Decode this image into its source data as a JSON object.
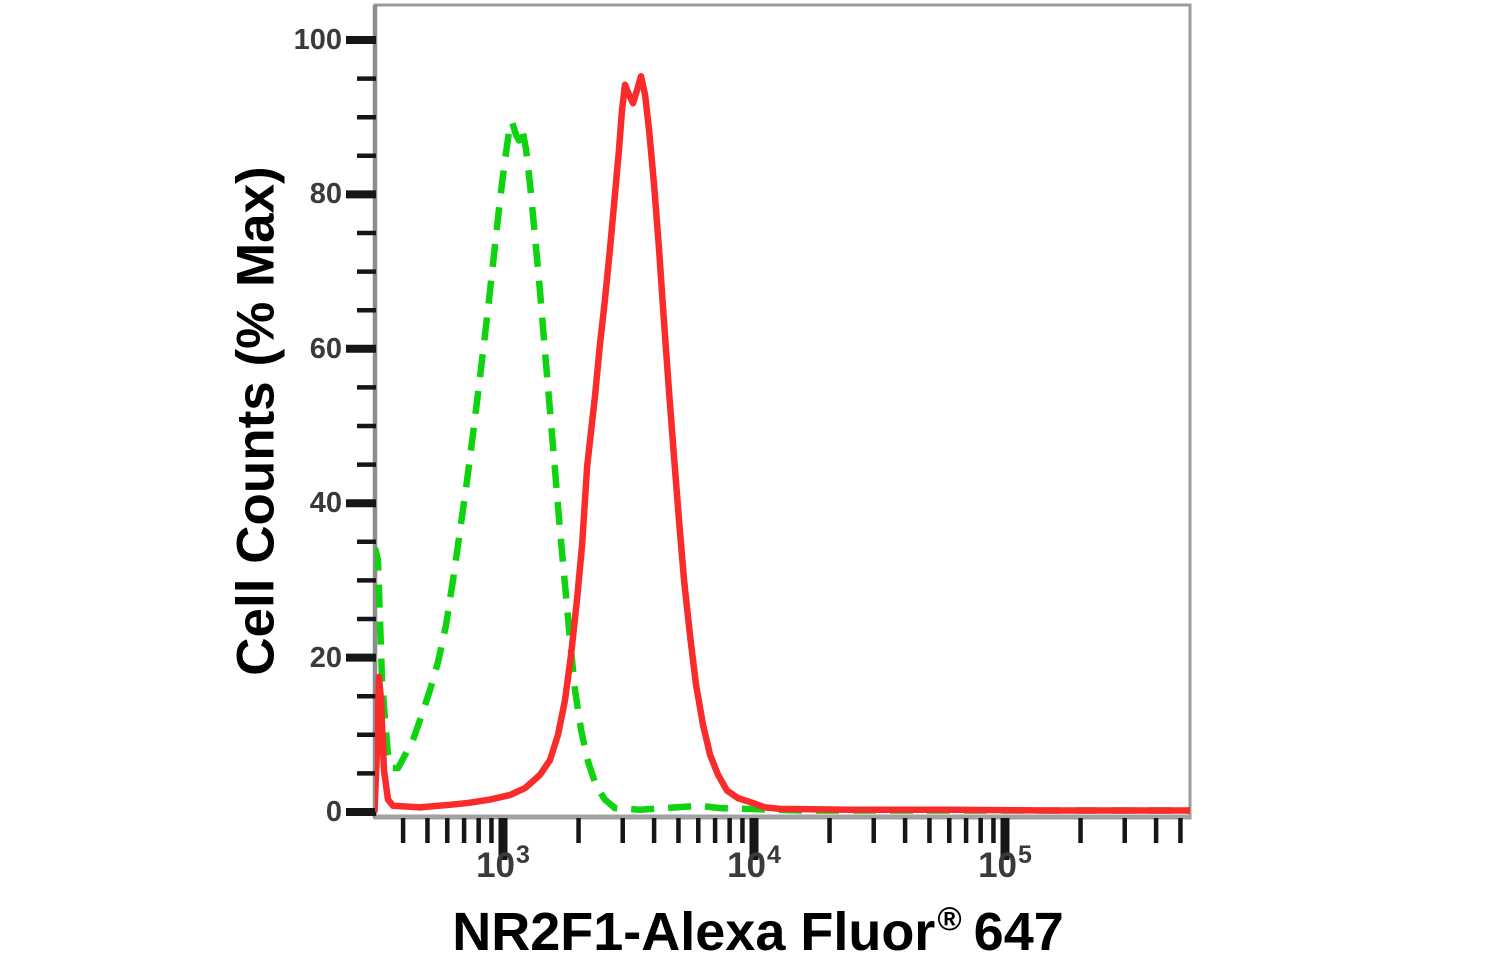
{
  "figure": {
    "background": "#ffffff",
    "plot_border_color": "#9c9c9c",
    "tick_color": "#161616",
    "tick_label_color": "#3a3a3a",
    "title_color": "#000000"
  },
  "y_axis_title": "Cell Counts (% Max)",
  "x_axis_title": {
    "text": "NR2F1-Alexa Fluor",
    "sup": "®",
    "suffix": "647"
  },
  "chart_data": {
    "type": "line",
    "subtype": "flow_cytometry_histogram_overlay",
    "title": "",
    "xlabel": "NR2F1-Alexa Fluor® 647",
    "ylabel": "Cell Counts (% Max)",
    "grid": false,
    "legend": "none",
    "x_axis": {
      "scale": "log10",
      "min_log": 2.49,
      "max_log": 5.737,
      "major_ticks": [
        {
          "log": 3,
          "base": "10",
          "exp": "3"
        },
        {
          "log": 4,
          "base": "10",
          "exp": "4"
        },
        {
          "log": 5,
          "base": "10",
          "exp": "5"
        }
      ],
      "minor_ticks_log": [
        2.602,
        2.699,
        2.778,
        2.845,
        2.903,
        2.954,
        3.301,
        3.477,
        3.602,
        3.699,
        3.778,
        3.845,
        3.903,
        3.954,
        4.301,
        4.477,
        4.602,
        4.699,
        4.778,
        4.845,
        4.903,
        4.954,
        5.301,
        5.477,
        5.602,
        5.699
      ]
    },
    "y_axis": {
      "min": 0,
      "max": 104.5,
      "major_ticks": [
        {
          "value": 0,
          "label": "0"
        },
        {
          "value": 20,
          "label": "20"
        },
        {
          "value": 40,
          "label": "40"
        },
        {
          "value": 60,
          "label": "60"
        },
        {
          "value": 80,
          "label": "80"
        },
        {
          "value": 100,
          "label": "100"
        }
      ],
      "minor_ticks": [
        5,
        10,
        15,
        25,
        30,
        35,
        45,
        50,
        55,
        65,
        70,
        75,
        85,
        90,
        95
      ]
    },
    "series": [
      {
        "id": "green-dashed-histogram",
        "appearance": "dashed",
        "color": "#0fd30f",
        "dash": [
          23,
          14
        ],
        "width": 6.5,
        "peak": {
          "x_log": 3.036,
          "percent": 89.4
        },
        "points": [
          [
            2.49,
            34.2
          ],
          [
            2.502,
            32.6
          ],
          [
            2.51,
            24.9
          ],
          [
            2.518,
            17.1
          ],
          [
            2.53,
            11.9
          ],
          [
            2.542,
            7.4
          ],
          [
            2.558,
            5.7
          ],
          [
            2.582,
            5.7
          ],
          [
            2.61,
            7.4
          ],
          [
            2.641,
            9.3
          ],
          [
            2.677,
            12.6
          ],
          [
            2.709,
            15.8
          ],
          [
            2.741,
            19.4
          ],
          [
            2.773,
            24.2
          ],
          [
            2.801,
            30.1
          ],
          [
            2.829,
            36.5
          ],
          [
            2.857,
            43.0
          ],
          [
            2.885,
            50.1
          ],
          [
            2.912,
            57.3
          ],
          [
            2.94,
            65.0
          ],
          [
            2.964,
            72.2
          ],
          [
            2.988,
            79.3
          ],
          [
            3.008,
            84.5
          ],
          [
            3.024,
            88.1
          ],
          [
            3.036,
            89.4
          ],
          [
            3.052,
            87.7
          ],
          [
            3.064,
            87.0
          ],
          [
            3.076,
            88.6
          ],
          [
            3.092,
            85.8
          ],
          [
            3.108,
            81.2
          ],
          [
            3.127,
            74.7
          ],
          [
            3.147,
            67.6
          ],
          [
            3.167,
            59.8
          ],
          [
            3.187,
            52.1
          ],
          [
            3.207,
            44.3
          ],
          [
            3.227,
            36.5
          ],
          [
            3.247,
            29.4
          ],
          [
            3.267,
            22.3
          ],
          [
            3.287,
            15.8
          ],
          [
            3.311,
            10.6
          ],
          [
            3.339,
            6.5
          ],
          [
            3.371,
            3.4
          ],
          [
            3.406,
            1.6
          ],
          [
            3.446,
            0.5
          ],
          [
            3.546,
            0.3
          ],
          [
            3.785,
            0.8
          ],
          [
            3.864,
            0.5
          ],
          [
            4.183,
            0.2
          ],
          [
            4.581,
            0.2
          ],
          [
            4.98,
            0.2
          ],
          [
            5.378,
            0.2
          ],
          [
            5.745,
            0.2
          ]
        ]
      },
      {
        "id": "red-solid-histogram",
        "appearance": "solid",
        "color": "#fa2b2b",
        "dash": null,
        "width": 6.5,
        "peak": {
          "x_log": 3.55,
          "percent": 95.3
        },
        "points": [
          [
            2.488,
            0.0
          ],
          [
            2.498,
            8.0
          ],
          [
            2.506,
            17.5
          ],
          [
            2.514,
            14.5
          ],
          [
            2.526,
            5.4
          ],
          [
            2.542,
            1.6
          ],
          [
            2.562,
            0.8
          ],
          [
            2.669,
            0.6
          ],
          [
            2.809,
            1.0
          ],
          [
            2.869,
            1.2
          ],
          [
            2.948,
            1.6
          ],
          [
            3.028,
            2.2
          ],
          [
            3.088,
            3.1
          ],
          [
            3.147,
            4.8
          ],
          [
            3.187,
            6.7
          ],
          [
            3.219,
            10.0
          ],
          [
            3.247,
            14.5
          ],
          [
            3.271,
            20.3
          ],
          [
            3.295,
            27.5
          ],
          [
            3.315,
            34.6
          ],
          [
            3.335,
            44.7
          ],
          [
            3.347,
            48.2
          ],
          [
            3.367,
            54.0
          ],
          [
            3.386,
            60.5
          ],
          [
            3.406,
            66.3
          ],
          [
            3.426,
            72.8
          ],
          [
            3.446,
            79.9
          ],
          [
            3.462,
            85.8
          ],
          [
            3.474,
            90.9
          ],
          [
            3.486,
            94.2
          ],
          [
            3.502,
            92.9
          ],
          [
            3.518,
            91.8
          ],
          [
            3.534,
            93.5
          ],
          [
            3.55,
            95.3
          ],
          [
            3.566,
            92.9
          ],
          [
            3.582,
            88.3
          ],
          [
            3.602,
            81.2
          ],
          [
            3.622,
            72.8
          ],
          [
            3.641,
            63.7
          ],
          [
            3.661,
            54.7
          ],
          [
            3.681,
            46.2
          ],
          [
            3.701,
            37.8
          ],
          [
            3.721,
            30.1
          ],
          [
            3.745,
            22.9
          ],
          [
            3.769,
            16.5
          ],
          [
            3.797,
            11.3
          ],
          [
            3.825,
            7.4
          ],
          [
            3.857,
            4.8
          ],
          [
            3.892,
            2.8
          ],
          [
            3.936,
            1.8
          ],
          [
            3.992,
            1.2
          ],
          [
            4.044,
            0.6
          ],
          [
            4.104,
            0.4
          ],
          [
            4.382,
            0.3
          ],
          [
            4.781,
            0.3
          ],
          [
            5.179,
            0.2
          ],
          [
            5.745,
            0.2
          ]
        ]
      }
    ]
  }
}
